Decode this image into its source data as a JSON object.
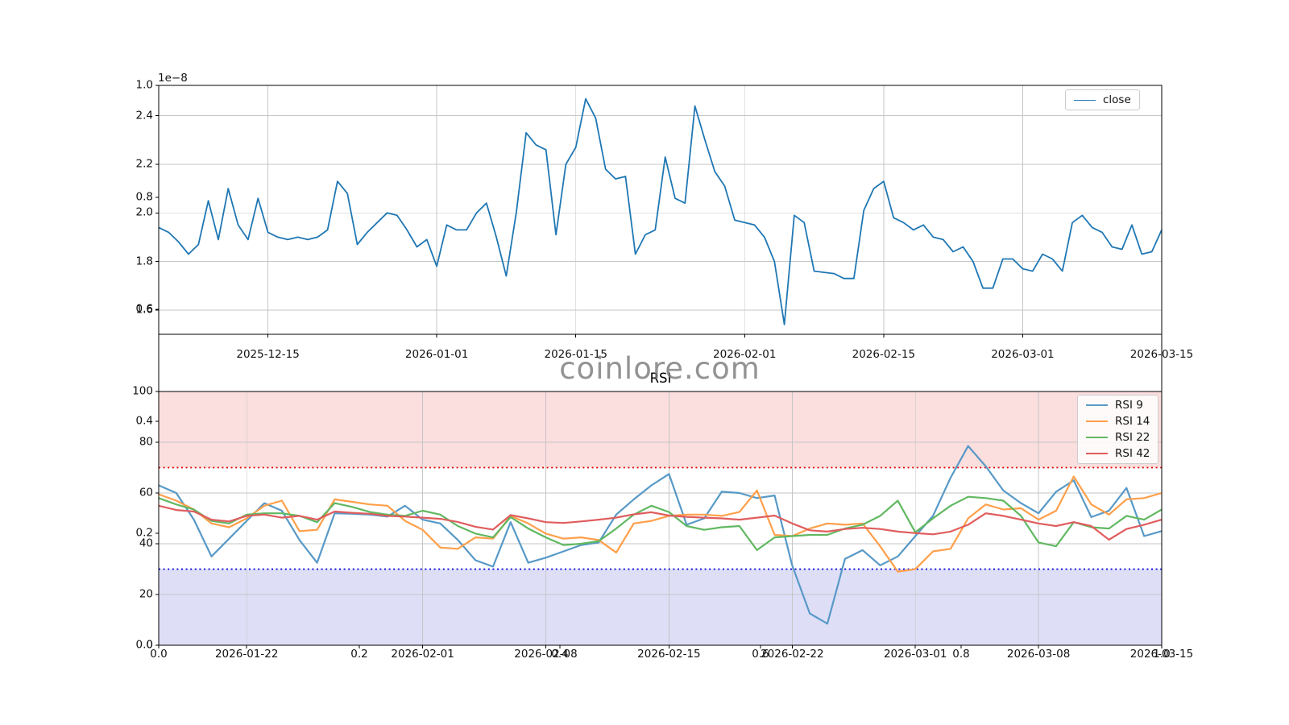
{
  "watermark": "coinlore.com",
  "colors": {
    "close": "#1f77b4",
    "rsi9": "#5799c7",
    "rsi14": "#ff9f4a",
    "rsi22": "#61b861",
    "rsi42": "#e05d5e",
    "overbought_fill": "#fbdede",
    "oversold_fill": "#dedef7",
    "overbought_line": "#e00000",
    "oversold_line": "#0000dd",
    "grid": "#c6c6c6",
    "spine": "#000000",
    "watermark_gray": "#787878"
  },
  "overlay_axis": {
    "x_tick_labels": [
      "0.0",
      "0.2",
      "0.4",
      "0.6",
      "0.8",
      "1.0"
    ],
    "y_tick_labels": [
      "0.0",
      "0.2",
      "0.4",
      "0.6",
      "0.8",
      "1.0"
    ]
  },
  "chart_data": [
    {
      "type": "line",
      "panel": "price",
      "title": "",
      "offset_label": "1e−8",
      "unit": "1e-8",
      "legend_position": "upper right",
      "grid": true,
      "ylim": [
        1.5,
        2.525
      ],
      "y_ticks": [
        "1.6",
        "1.8",
        "2.0",
        "2.2",
        "2.4"
      ],
      "y_tick_values": [
        1.6,
        1.8,
        2.0,
        2.2,
        2.4
      ],
      "x_start": "2025-12-04",
      "x_end": "2026-03-15",
      "x_ticks": [
        "2025-12-15",
        "2026-01-01",
        "2026-01-15",
        "2026-02-01",
        "2026-02-15",
        "2026-03-01",
        "2026-03-15"
      ],
      "series": [
        {
          "name": "close",
          "values": [
            1.94,
            1.92,
            1.88,
            1.83,
            1.87,
            2.05,
            1.89,
            2.1,
            1.95,
            1.89,
            2.06,
            1.92,
            1.9,
            1.89,
            1.9,
            1.89,
            1.9,
            1.93,
            2.13,
            2.08,
            1.87,
            1.92,
            1.96,
            2.0,
            1.99,
            1.93,
            1.86,
            1.89,
            1.78,
            1.95,
            1.93,
            1.93,
            2.0,
            2.04,
            1.9,
            1.74,
            2.0,
            2.33,
            2.28,
            2.26,
            1.91,
            2.2,
            2.27,
            2.47,
            2.39,
            2.18,
            2.14,
            2.15,
            1.83,
            1.91,
            1.93,
            2.23,
            2.06,
            2.04,
            2.44,
            2.3,
            2.17,
            2.11,
            1.97,
            1.96,
            1.95,
            1.9,
            1.8,
            1.54,
            1.99,
            1.96,
            1.76,
            1.755,
            1.75,
            1.73,
            1.73,
            2.01,
            2.1,
            2.13,
            1.98,
            1.96,
            1.93,
            1.95,
            1.9,
            1.89,
            1.84,
            1.86,
            1.8,
            1.69,
            1.69,
            1.81,
            1.81,
            1.77,
            1.76,
            1.83,
            1.81,
            1.76,
            1.96,
            1.99,
            1.94,
            1.92,
            1.86,
            1.85,
            1.95,
            1.83,
            1.84,
            1.93
          ]
        }
      ]
    },
    {
      "type": "line",
      "panel": "rsi",
      "title": "RSI",
      "legend_position": "upper right",
      "grid": true,
      "ylim": [
        0,
        100
      ],
      "y_ticks": [
        "0",
        "20",
        "40",
        "60",
        "80",
        "100"
      ],
      "y_tick_values": [
        0,
        20,
        40,
        60,
        80,
        100
      ],
      "thresholds": {
        "overbought": 70,
        "oversold": 30
      },
      "x_start": "2026-01-17",
      "x_end": "2026-03-15",
      "x_ticks": [
        "2026-01-22",
        "2026-02-01",
        "2026-02-08",
        "2026-02-15",
        "2026-02-22",
        "2026-03-01",
        "2026-03-08",
        "2026-03-15"
      ],
      "series": [
        {
          "name": "RSI 9",
          "values": [
            63,
            60,
            49.5,
            35,
            42,
            49,
            56,
            53,
            41.5,
            32.5,
            52,
            51.8,
            51.5,
            50.7,
            55,
            49.5,
            48,
            41.5,
            33.5,
            31,
            48.5,
            32.5,
            34.5,
            37,
            39.5,
            40.5,
            51.5,
            57.5,
            63,
            67.5,
            47.5,
            50,
            60.5,
            60,
            58,
            59,
            31.5,
            12.5,
            8.5,
            34,
            37.5,
            31.5,
            35,
            43,
            51,
            66,
            78.5,
            70.5,
            61,
            56,
            52,
            60.5,
            65,
            50.5,
            53,
            62,
            43,
            45
          ]
        },
        {
          "name": "RSI 14",
          "values": [
            59.5,
            57,
            53.5,
            48,
            46.5,
            50,
            55,
            57,
            45,
            45.5,
            57.5,
            56.5,
            55.5,
            55,
            49,
            45.5,
            38.5,
            38,
            42.5,
            42,
            51,
            48,
            44,
            42,
            42.5,
            41.5,
            36.5,
            48,
            49,
            51,
            51.5,
            51.5,
            51,
            52.5,
            61,
            43.5,
            43,
            46,
            48,
            47.5,
            48,
            39,
            29,
            30,
            37,
            38,
            50,
            55.5,
            53.5,
            54,
            49.5,
            53,
            66.5,
            55.5,
            51.5,
            57.5,
            58,
            60
          ]
        },
        {
          "name": "RSI 22",
          "values": [
            58,
            55.5,
            53.5,
            49,
            48,
            51.5,
            52,
            52,
            51,
            48.5,
            56,
            54.5,
            52.5,
            51.5,
            51,
            53,
            51.5,
            47,
            44,
            42.5,
            50.5,
            46,
            42.5,
            39.5,
            40,
            41,
            46,
            51.5,
            55,
            52.5,
            47,
            45.5,
            46.5,
            47,
            37.5,
            42.5,
            43,
            43.5,
            43.5,
            46,
            47.5,
            51,
            57,
            44.5,
            50,
            55,
            58.5,
            58,
            57,
            51,
            40.5,
            39,
            48.5,
            46.5,
            46,
            51,
            49.5,
            53.5
          ]
        },
        {
          "name": "RSI 42",
          "values": [
            55,
            53.3,
            52.7,
            49.5,
            48.8,
            51,
            51.5,
            50.3,
            51,
            49.5,
            52.7,
            52.2,
            51.8,
            51,
            50.7,
            50.3,
            49.8,
            48.6,
            46.7,
            45.6,
            51.3,
            50,
            48.5,
            48.2,
            48.8,
            49.5,
            50.3,
            51.6,
            52.4,
            51.1,
            50.6,
            50.3,
            50,
            49.5,
            50.3,
            51.1,
            48,
            45.3,
            44.8,
            45.8,
            46.3,
            45.8,
            44.8,
            44.2,
            43.7,
            44.8,
            47.5,
            52,
            51,
            49.5,
            48,
            47,
            48.5,
            47,
            41.6,
            45.8,
            47.5,
            49.5
          ]
        }
      ]
    }
  ]
}
